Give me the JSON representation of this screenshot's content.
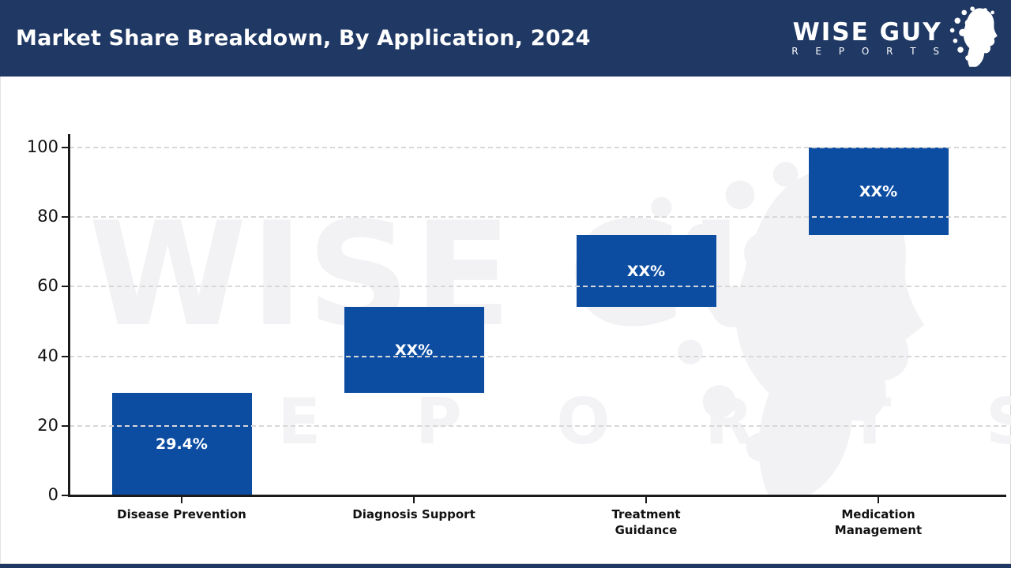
{
  "header": {
    "title": "Market Share Breakdown, By Application, 2024",
    "logo": {
      "name": "WISE GUY",
      "tagline": "R E P O R T S"
    }
  },
  "watermark": {
    "name": "WISE GUY",
    "tagline": "R E P O R T S"
  },
  "chart_data": {
    "type": "bar",
    "subtype": "floating-waterfall",
    "title": "Market Share Breakdown, By Application, 2024",
    "categories": [
      "Disease Prevention",
      "Diagnosis Support",
      "Treatment Guidance",
      "Medication Management"
    ],
    "segments": [
      {
        "category": "Disease Prevention",
        "start": 0,
        "end": 29.4,
        "label": "29.4%"
      },
      {
        "category": "Diagnosis Support",
        "start": 29.4,
        "end": 54.2,
        "label": "XX%"
      },
      {
        "category": "Treatment Guidance",
        "start": 54.2,
        "end": 74.8,
        "label": "XX%"
      },
      {
        "category": "Medication Management",
        "start": 74.8,
        "end": 100,
        "label": "XX%"
      }
    ],
    "ylim": [
      0,
      100
    ],
    "yticks": [
      0,
      20,
      40,
      60,
      80,
      100
    ],
    "xlabel": "",
    "ylabel": "",
    "grid": "horizontal-dashed",
    "legend": "none",
    "bar_color": "#0c4da2",
    "bar_label_color": "#ffffff"
  },
  "colors": {
    "header_bg": "#1f3864",
    "bar": "#0c4da2",
    "grid": "#d8d8d8",
    "axis": "#1a1a1a",
    "watermark": "#f2f2f4"
  }
}
